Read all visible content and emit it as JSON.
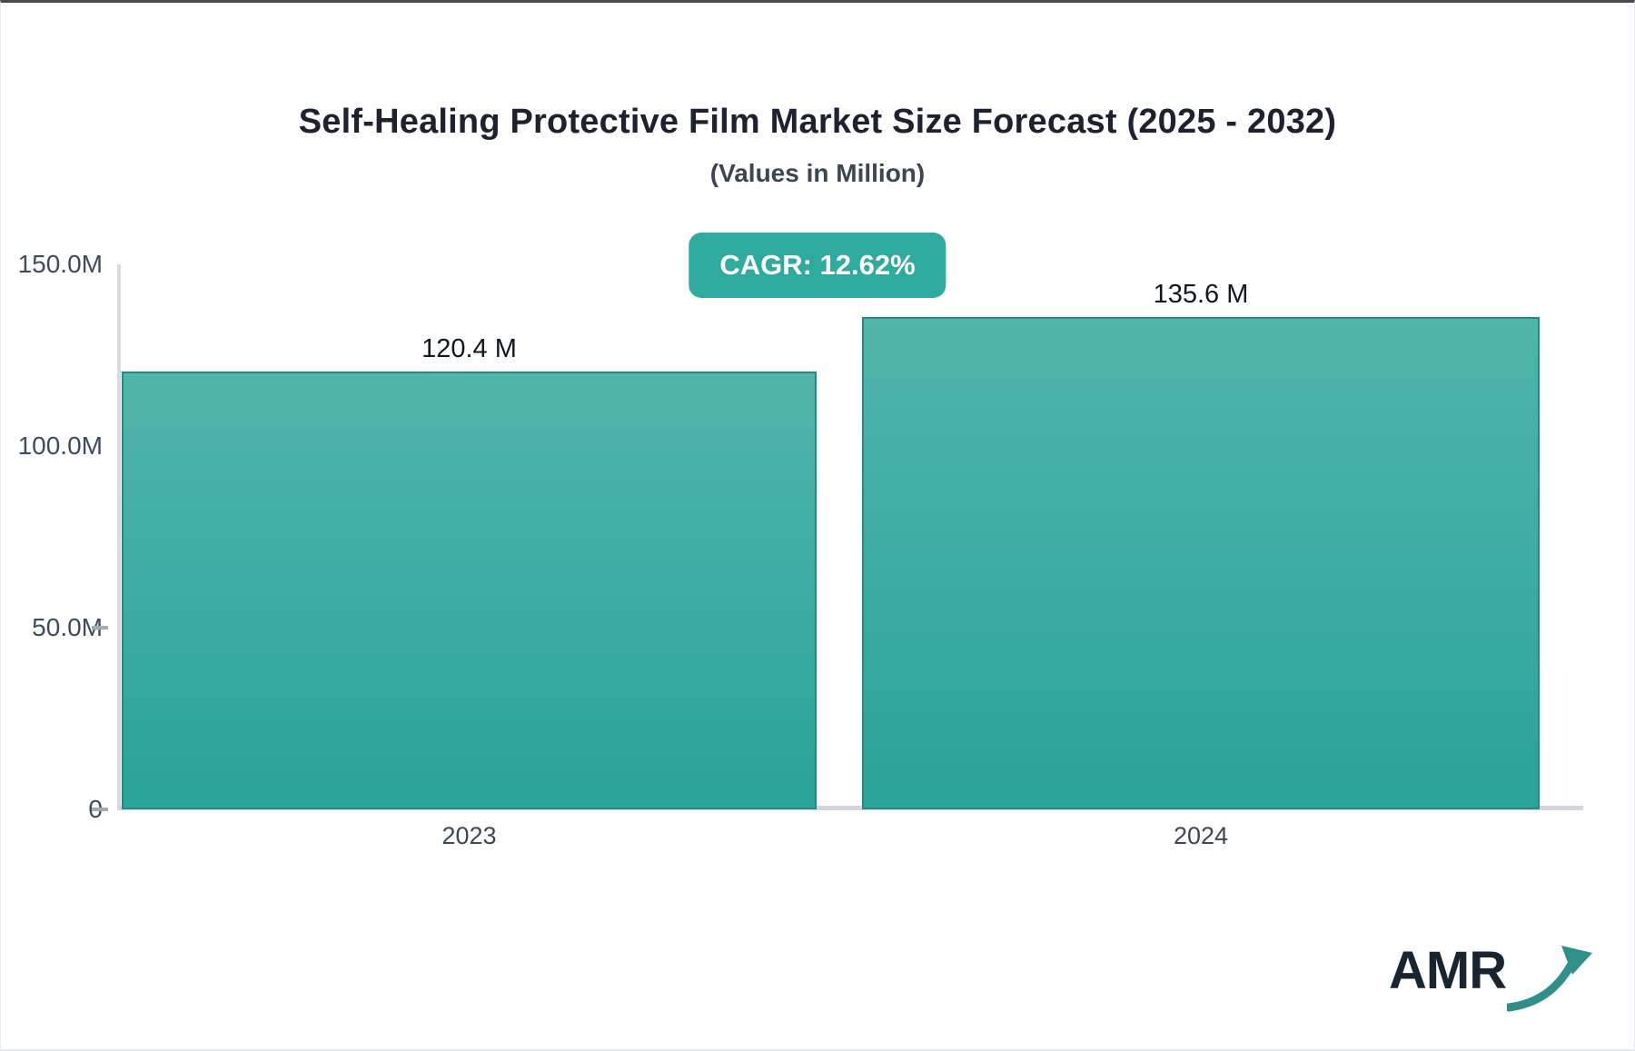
{
  "page": {
    "title": "Self-Healing Protective Film Market Size Forecast (2025 - 2032)",
    "subtitle": "(Values in Million)",
    "cagr_label": "CAGR: 12.62%",
    "logo_text": "AMR"
  },
  "colors": {
    "accent_teal": "#2faa9e",
    "bar_gradient_top": "#50b5ab",
    "bar_gradient_bottom": "#2aa399",
    "bar_border": "#1f8d85",
    "axis_line": "#d9dbe0",
    "axis_text": "#3f4b5e",
    "title_text": "#1d2130"
  },
  "chart_data": {
    "type": "bar",
    "categories": [
      "2023",
      "2024"
    ],
    "values": [
      120.4,
      135.6
    ],
    "value_labels": [
      "120.4 M",
      "135.6 M"
    ],
    "title": "Self-Healing Protective Film Market Size Forecast (2025 - 2032)",
    "subtitle": "(Values in Million)",
    "annotation": "CAGR: 12.62%",
    "xlabel": "",
    "ylabel": "",
    "ylim": [
      0,
      150
    ],
    "y_ticks": [
      {
        "value": 150,
        "label": "150.0M"
      },
      {
        "value": 100,
        "label": "100.0M"
      },
      {
        "value": 50,
        "label": "50.0M"
      },
      {
        "value": 0,
        "label": "0"
      }
    ],
    "grid": false,
    "legend": null
  }
}
